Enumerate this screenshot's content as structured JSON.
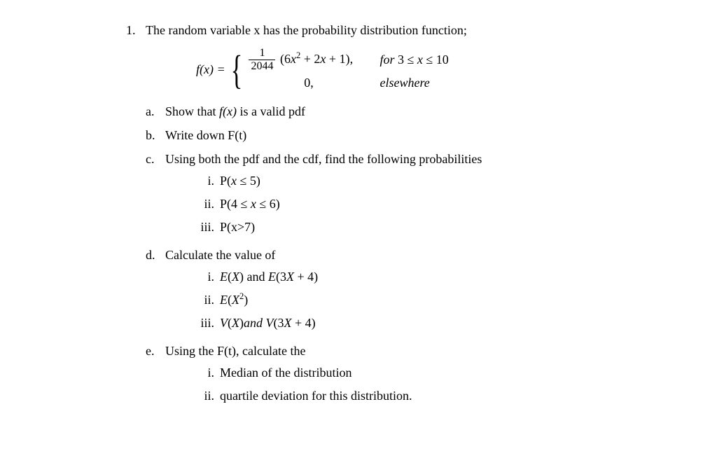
{
  "question": {
    "number": "1.",
    "text": "The random variable x has the probability distribution function;"
  },
  "equation": {
    "lhs": "f(x) =",
    "frac_num": "1",
    "frac_den": "2044",
    "poly": "(6x² + 2x + 1),",
    "cond1": "for 3 ≤ x ≤ 10",
    "zero": "0,",
    "cond2": "elsewhere"
  },
  "parts": {
    "a": {
      "letter": "a.",
      "text_pre": "Show that ",
      "fx": "f(x)",
      "text_post": " is a valid pdf"
    },
    "b": {
      "letter": "b.",
      "text": "Write down F(t)"
    },
    "c": {
      "letter": "c.",
      "text": "Using both the pdf and the cdf, find the following probabilities",
      "items": {
        "i": {
          "num": "i.",
          "text": "P(x ≤ 5)"
        },
        "ii": {
          "num": "ii.",
          "text": "P(4 ≤ x ≤ 6)"
        },
        "iii": {
          "num": "iii.",
          "text": "P(x>7)"
        }
      }
    },
    "d": {
      "letter": "d.",
      "text": "Calculate the value of",
      "items": {
        "i": {
          "num": "i.",
          "text_pre": "E(X)",
          "text_mid": " and ",
          "text_post": "E(3X + 4)"
        },
        "ii": {
          "num": "ii.",
          "text": "E(X²)"
        },
        "iii": {
          "num": "iii.",
          "text_pre": "V(X)",
          "text_mid": "and ",
          "text_post": "V(3X + 4)"
        }
      }
    },
    "e": {
      "letter": "e.",
      "text": "Using the F(t), calculate the",
      "items": {
        "i": {
          "num": "i.",
          "text": "Median of the distribution"
        },
        "ii": {
          "num": "ii.",
          "text": "quartile deviation for this distribution."
        }
      }
    }
  },
  "style": {
    "bg": "#ffffff",
    "text_color": "#000000",
    "font_family": "Times New Roman",
    "base_fontsize": 18
  }
}
